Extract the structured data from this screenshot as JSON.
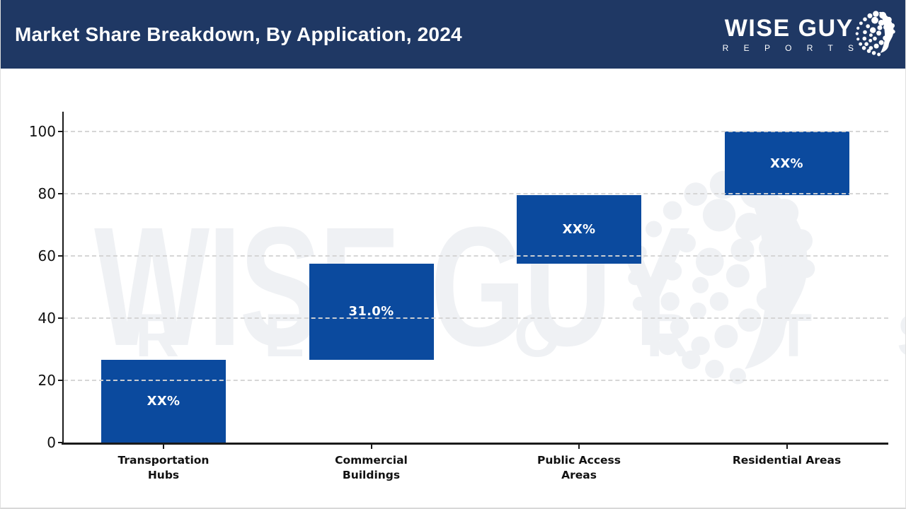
{
  "header": {
    "title": "Market Share Breakdown, By Application, 2024",
    "logo": {
      "name": "WISE GUY",
      "sub": "R E P O R T S"
    }
  },
  "watermark": {
    "line1": "WISE GUY",
    "line2": "R E P O R T S"
  },
  "colors": {
    "header_bg": "#1F3864",
    "bar": "#0B4A9E",
    "grid": "#D4D4D4",
    "axis": "#1A1A1A",
    "watermark": "#EFF1F4",
    "bar_label_text": "#FFFFFF",
    "title_text": "#FFFFFF"
  },
  "chart_data": {
    "type": "bar",
    "subtype": "waterfall",
    "title": "Market Share Breakdown, By Application, 2024",
    "xlabel": "",
    "ylabel": "",
    "categories": [
      "Transportation Hubs",
      "Commercial Buildings",
      "Public Access Areas",
      "Residential Areas"
    ],
    "category_lines": [
      [
        "Transportation",
        "Hubs"
      ],
      [
        "Commercial",
        "Buildings"
      ],
      [
        "Public Access",
        "Areas"
      ],
      [
        "Residential Areas"
      ]
    ],
    "series": [
      {
        "name": "Market Share (%)",
        "start": [
          0,
          26.6,
          57.6,
          79.5
        ],
        "end": [
          26.6,
          57.6,
          79.5,
          100
        ]
      }
    ],
    "segment_values": [
      26.6,
      31.0,
      21.9,
      20.5
    ],
    "bar_labels": [
      "XX%",
      "31.0%",
      "XX%",
      "XX%"
    ],
    "yticks": [
      0,
      20,
      40,
      60,
      80,
      100
    ],
    "ylim": [
      0,
      106
    ],
    "grid": "horizontal-dashed",
    "legend": "none"
  }
}
